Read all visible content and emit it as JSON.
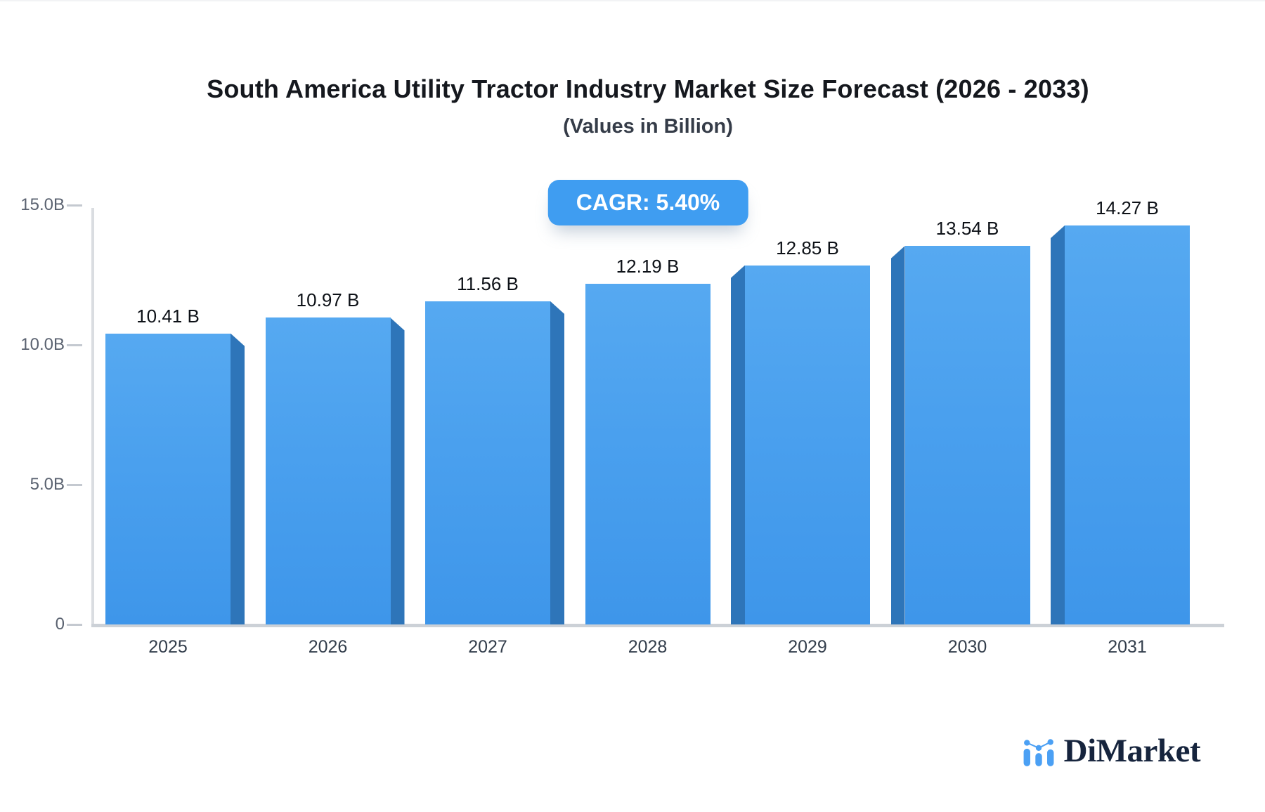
{
  "header": {
    "title": "South America Utility Tractor Industry Market Size Forecast (2026 - 2033)",
    "subtitle": "(Values in Billion)"
  },
  "badge": {
    "label": "CAGR: 5.40%"
  },
  "chart_data": {
    "type": "bar",
    "title": "South America Utility Tractor Industry Market Size Forecast (2026 - 2033)",
    "subtitle": "(Values in Billion)",
    "cagr_annotation": "CAGR: 5.40%",
    "categories": [
      "2025",
      "2026",
      "2027",
      "2028",
      "2029",
      "2030",
      "2031"
    ],
    "values": [
      10.41,
      10.97,
      11.56,
      12.19,
      12.85,
      13.54,
      14.27
    ],
    "value_labels": [
      "10.41 B",
      "10.97 B",
      "11.56 B",
      "12.19 B",
      "12.85 B",
      "13.54 B",
      "14.27 B"
    ],
    "ylim": [
      0,
      15
    ],
    "yticks": [
      {
        "value": 0,
        "label": "0"
      },
      {
        "value": 5,
        "label": "5.0B"
      },
      {
        "value": 10,
        "label": "10.0B"
      },
      {
        "value": 15,
        "label": "15.0B"
      }
    ],
    "grid": false,
    "legend": false,
    "colors": {
      "bar_face_top": "#56a9f1",
      "bar_face_bottom": "#3e96ea",
      "bar_side": "#2e75b9",
      "badge_background": "#3f9df1",
      "badge_text": "#ffffff",
      "axis_line": "#ccd1d7",
      "tick_label": "#5a6270"
    }
  },
  "logo": {
    "text": "DiMarket",
    "icon": "bar-chart-logo-icon",
    "icon_color": "#4ba0f4",
    "text_color": "#16243d"
  }
}
